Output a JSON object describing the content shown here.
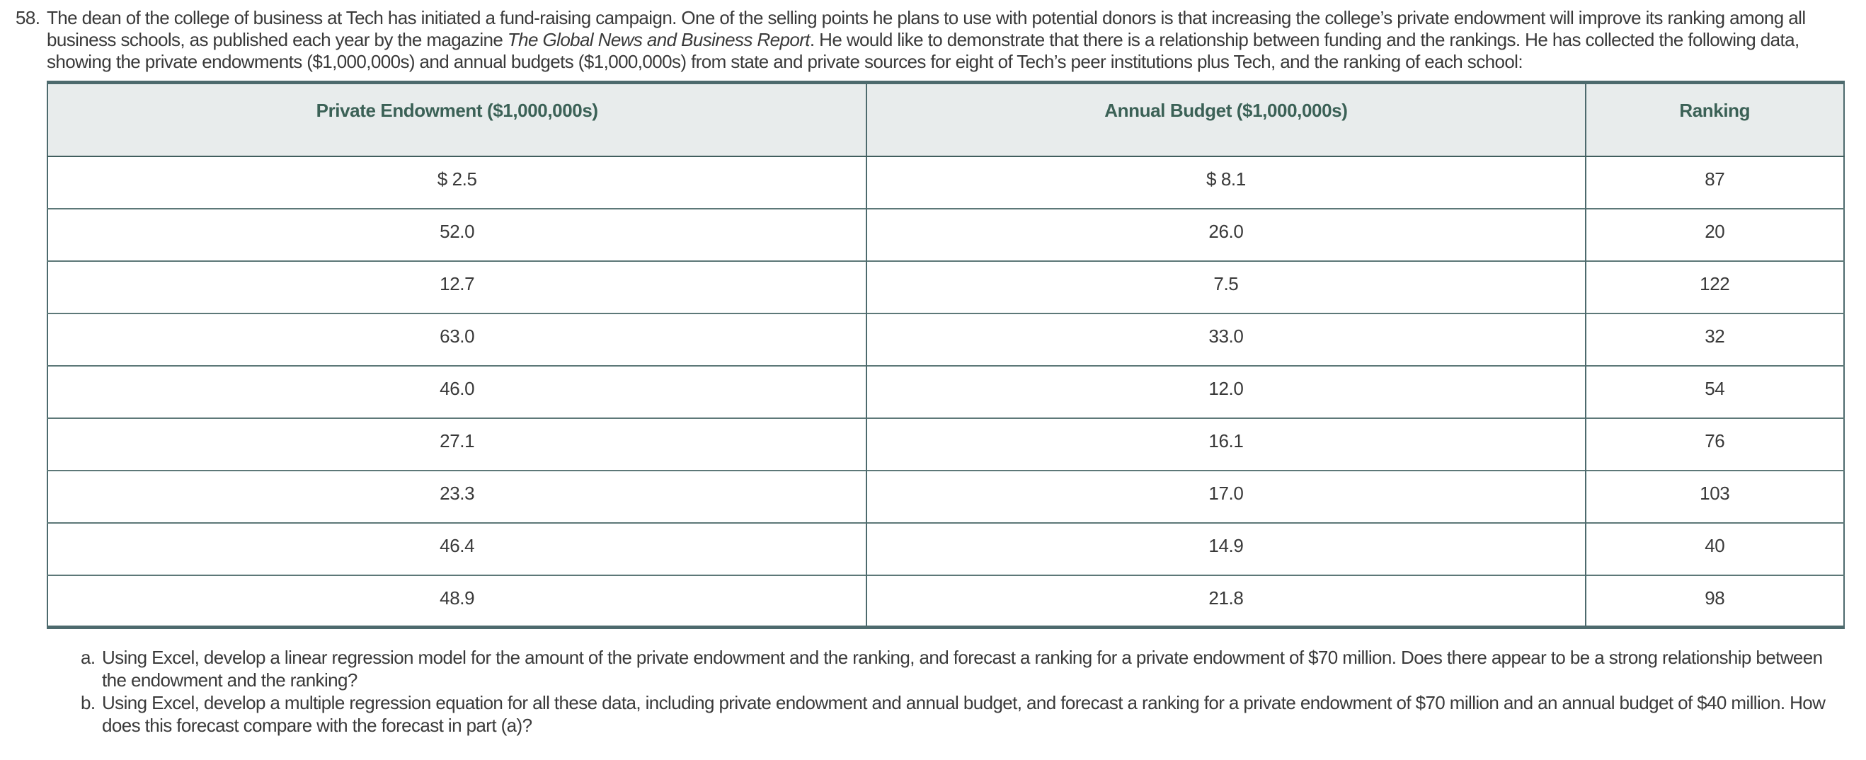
{
  "problem": {
    "number": "58.",
    "intro": {
      "before_italic": "The dean of the college of business at Tech has initiated a fund-raising campaign. One of the selling points he plans to use with potential donors is that increasing the college’s private endowment will improve its ranking among all business schools, as published each year by the magazine ",
      "italic": "The Global News and Business Report",
      "after_italic": ". He would like to demonstrate that there is a relationship between funding and the rankings. He has collected the following data, showing the private endowments ($1,000,000s) and annual budgets ($1,000,000s) from state and private sources for eight of Tech’s peer institutions plus Tech, and the ranking of each school:"
    }
  },
  "table": {
    "headers": [
      "Private Endowment ($1,000,000s)",
      "Annual Budget ($1,000,000s)",
      "Ranking"
    ],
    "rows": [
      [
        "$ 2.5",
        "$ 8.1",
        "87"
      ],
      [
        "52.0",
        "26.0",
        "20"
      ],
      [
        "12.7",
        "7.5",
        "122"
      ],
      [
        "63.0",
        "33.0",
        "32"
      ],
      [
        "46.0",
        "12.0",
        "54"
      ],
      [
        "27.1",
        "16.1",
        "76"
      ],
      [
        "23.3",
        "17.0",
        "103"
      ],
      [
        "46.4",
        "14.9",
        "40"
      ],
      [
        "48.9",
        "21.8",
        "98"
      ]
    ]
  },
  "questions": [
    {
      "marker": "a.",
      "text": "Using Excel, develop a linear regression model for the amount of the private endowment and the ranking, and forecast a ranking for a private endowment of $70 million. Does there appear to be a strong relationship between the endowment and the ranking?"
    },
    {
      "marker": "b.",
      "text": "Using Excel, develop a multiple regression equation for all these data, including private endowment and annual budget, and forecast a ranking for a private endowment of $70 million and an annual budget of $40 million. How does this forecast compare with the forecast in part (a)?"
    }
  ],
  "colors": {
    "table_border": "#4d6a6d",
    "row_divider": "#5d7878",
    "header_background": "#e8ecec",
    "header_text": "#3b6156",
    "body_text": "#3a3a3a"
  }
}
